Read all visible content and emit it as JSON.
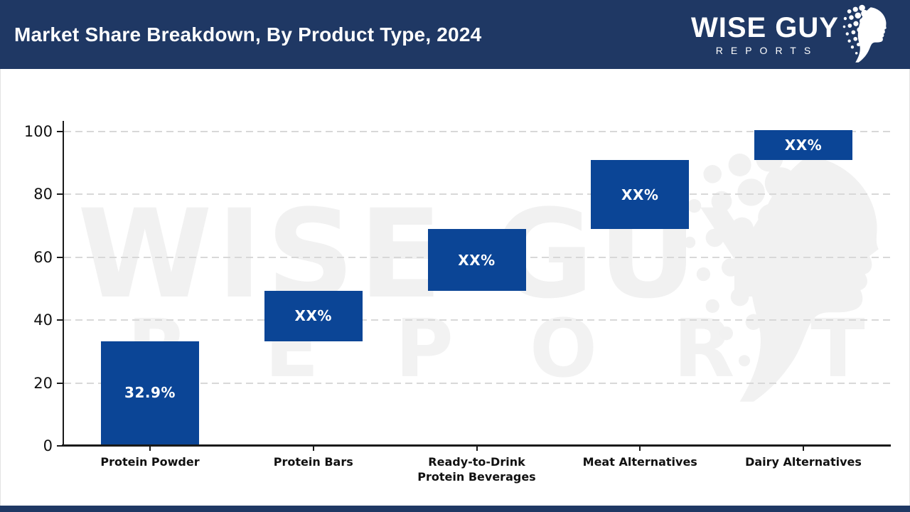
{
  "header": {
    "title": "Market Share Breakdown, By Product Type, 2024",
    "logo": {
      "wordmark": "WISE GUY",
      "subtext": "REPORTS"
    }
  },
  "watermark": {
    "line1": "WISE GUY",
    "line2": "R E P O R T S"
  },
  "colors": {
    "header_bg": "#1F3864",
    "bar": "#0B4596",
    "axis": "#1a1a1a",
    "grid": "#d8d8d8",
    "watermark": "#f1f1f1"
  },
  "chart_data": {
    "type": "bar",
    "variant": "waterfall",
    "title": "Market Share Breakdown, By Product Type, 2024",
    "xlabel": "",
    "ylabel": "",
    "ylim": [
      0,
      103
    ],
    "y_ticks": [
      0,
      20,
      40,
      60,
      80,
      100
    ],
    "grid": "horizontal-dashed",
    "legend": "none",
    "bar_color": "#0B4596",
    "categories": [
      "Protein Powder",
      "Protein Bars",
      "Ready-to-Drink Protein Beverages",
      "Meat Alternatives",
      "Dairy Alternatives"
    ],
    "segments": [
      {
        "category": "Protein Powder",
        "display_lines": [
          "Protein Powder"
        ],
        "start": 0,
        "end": 32.9,
        "label": "32.9%"
      },
      {
        "category": "Protein Bars",
        "display_lines": [
          "Protein Bars"
        ],
        "start": 32.9,
        "end": 48.8,
        "label": "XX%"
      },
      {
        "category": "Ready-to-Drink Protein Beverages",
        "display_lines": [
          "Ready-to-Drink",
          "Protein Beverages"
        ],
        "start": 48.8,
        "end": 68.5,
        "label": "XX%"
      },
      {
        "category": "Meat Alternatives",
        "display_lines": [
          "Meat Alternatives"
        ],
        "start": 68.5,
        "end": 90.5,
        "label": "XX%"
      },
      {
        "category": "Dairy Alternatives",
        "display_lines": [
          "Dairy Alternatives"
        ],
        "start": 90.5,
        "end": 100,
        "label": "XX%"
      }
    ]
  }
}
